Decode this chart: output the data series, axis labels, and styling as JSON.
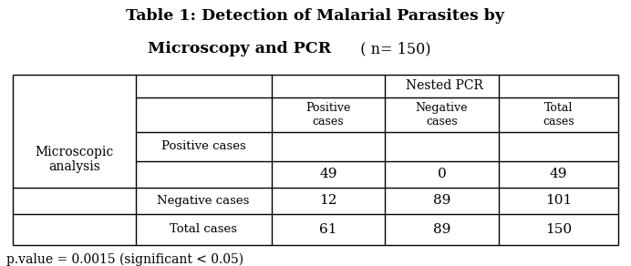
{
  "title_line1": "Table 1: Detection of Malarial Parasites by",
  "title_line2_bold": "Microscopy and PCR",
  "title_line2_normal": "  ( n= 150)",
  "footer": "p.value = 0.0015 (significant < 0.05)",
  "nested_pcr_label": "Nested PCR",
  "col_headers": [
    "Positive\ncases",
    "Negative\ncases",
    "Total\ncases"
  ],
  "row1_label": "Positive cases",
  "row1_values": [
    "49",
    "0",
    "49"
  ],
  "row2_label": "Negative cases",
  "row2_values": [
    "12",
    "89",
    "101"
  ],
  "row3_label": "Total cases",
  "row3_values": [
    "61",
    "89",
    "150"
  ],
  "microscopic_label": "Microscopic\nanalysis",
  "bg_color": "#ffffff",
  "text_color": "#000000",
  "border_color": "#000000",
  "font_family": "DejaVu Serif"
}
